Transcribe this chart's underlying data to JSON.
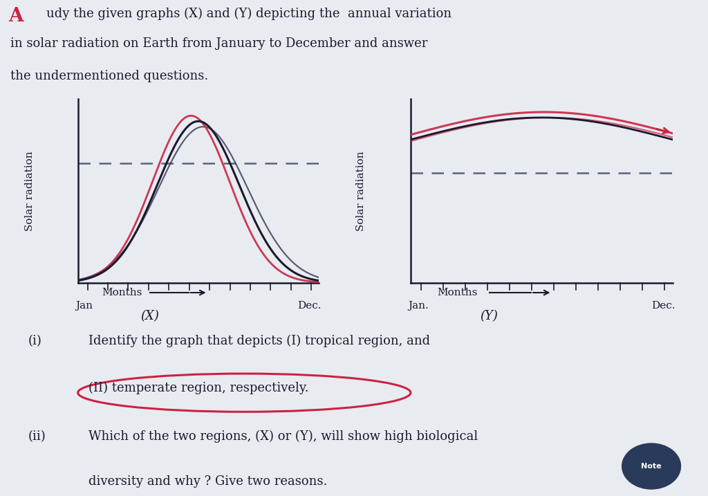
{
  "bg_color": "#e8ecf0",
  "font_color": "#1a1a2e",
  "dashed_color": "#5a6080",
  "curve_dark": "#1a1a2e",
  "curve_red": "#cc2244",
  "circle_color": "#cc2244",
  "note_bg": "#2a3a5a",
  "graph_X": {
    "label_y": "Solar radiation",
    "xlabel_left": "Jan",
    "xlabel_right": "Dec.",
    "graph_label": "(X)"
  },
  "graph_Y": {
    "label_y": "Solar radiation",
    "xlabel_left": "Jan.",
    "xlabel_right": "Dec.",
    "graph_label": "(Y)"
  },
  "months_label": "Months",
  "q1_part1": "Identify the graph that depicts (I) tropical region, and",
  "q1_part2": "(II) temperate region, respectively.",
  "q1_label": "(i)",
  "q2_part1": "Which of the two regions, (X) or (Y), will show high biological",
  "q2_part2": "diversity and why ? Give two reasons.",
  "q2_label": "(ii)",
  "title_line1": "udy the given graphs (X) and (Y) depicting the  annual variation",
  "title_line2": "in solar radiation on Earth from January to December and answer",
  "title_line3": "the undermentioned questions.",
  "A_label": "A"
}
